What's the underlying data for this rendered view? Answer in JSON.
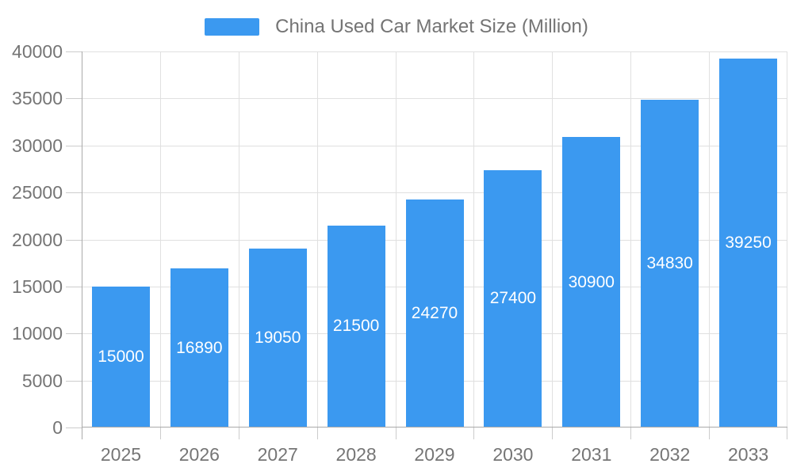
{
  "legend": {
    "label": "China Used Car Market Size (Million)"
  },
  "chart_data": {
    "type": "bar",
    "title": "China Used Car Market Size (Million)",
    "series_name": "China Used Car Market Size (Million)",
    "categories": [
      "2025",
      "2026",
      "2027",
      "2028",
      "2029",
      "2030",
      "2031",
      "2032",
      "2033"
    ],
    "values": [
      15000,
      16890,
      19050,
      21500,
      24270,
      27400,
      30900,
      34830,
      39250
    ],
    "xlabel": "",
    "ylabel": "",
    "ylim": [
      0,
      40000
    ],
    "yticks": [
      0,
      5000,
      10000,
      15000,
      20000,
      25000,
      30000,
      35000,
      40000
    ],
    "grid": true,
    "legend_position": "top-center",
    "value_labels": "inside-center",
    "colors": {
      "bar": "#3b99f0",
      "value_label": "#ffffff",
      "axis_label": "#757575",
      "legend_text": "#747474",
      "grid_line": "#e0e0e0",
      "tick_line": "#cccccc",
      "axis_line": "#aaaaaa",
      "background": "#ffffff"
    }
  }
}
